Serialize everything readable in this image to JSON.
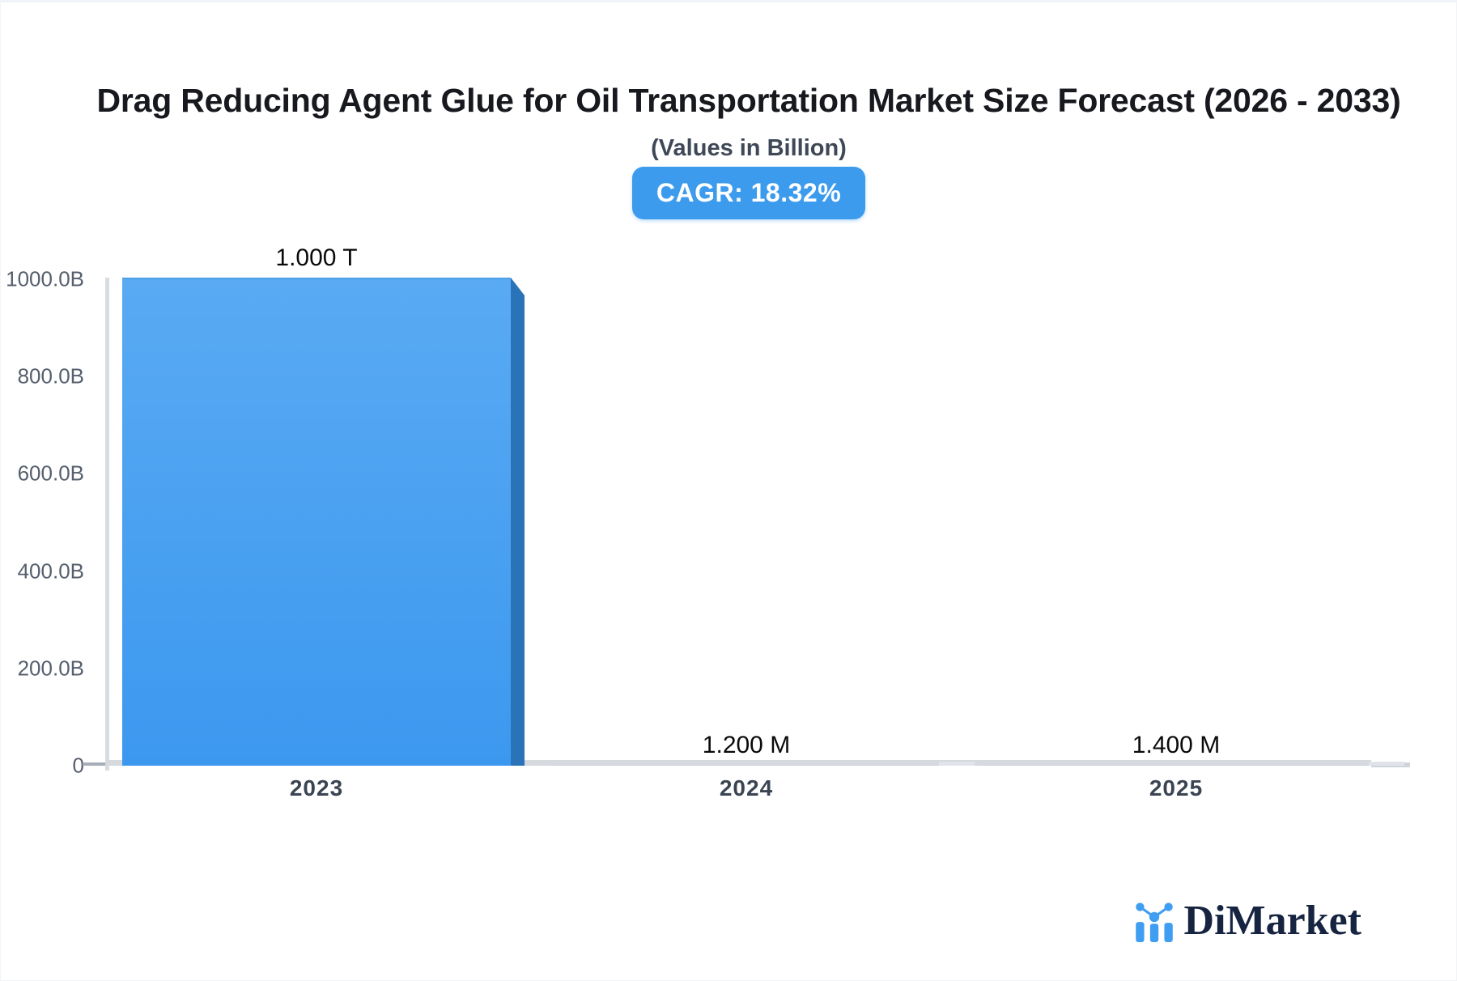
{
  "header": {
    "title": "Drag Reducing Agent Glue for Oil Transportation Market Size Forecast (2026 - 2033)",
    "subtitle": "(Values in Billion)",
    "cagr_label": "CAGR: 18.32%"
  },
  "chart_data": {
    "type": "bar",
    "title": "Drag Reducing Agent Glue for Oil Transportation Market Size Forecast (2026 - 2033)",
    "subtitle": "(Values in Billion)",
    "cagr_percent": 18.32,
    "categories": [
      "2023",
      "2024",
      "2025"
    ],
    "values_billion": [
      1000,
      0.0012,
      0.0014
    ],
    "value_labels": [
      "1.000 T",
      "1.200 M",
      "1.400 M"
    ],
    "y_ticks": [
      "1000.0B",
      "800.0B",
      "600.0B",
      "400.0B",
      "200.0B",
      "0"
    ],
    "ylim_billion": [
      0,
      1000
    ],
    "xlabel": "",
    "ylabel": "",
    "grid": false,
    "legend": false,
    "bar_color_top": "#59aaf3",
    "bar_color_bottom": "#3c98ef",
    "bar_side_color": "#2b73b9",
    "axis_color": "#d8dbe0"
  },
  "footer": {
    "logo_text": "DiMarket"
  },
  "colors": {
    "badge_bg": "#3d9bee",
    "badge_text": "#ffffff",
    "title_text": "#17191e",
    "logo_blue": "#3f9ef2",
    "logo_navy": "#172441"
  }
}
